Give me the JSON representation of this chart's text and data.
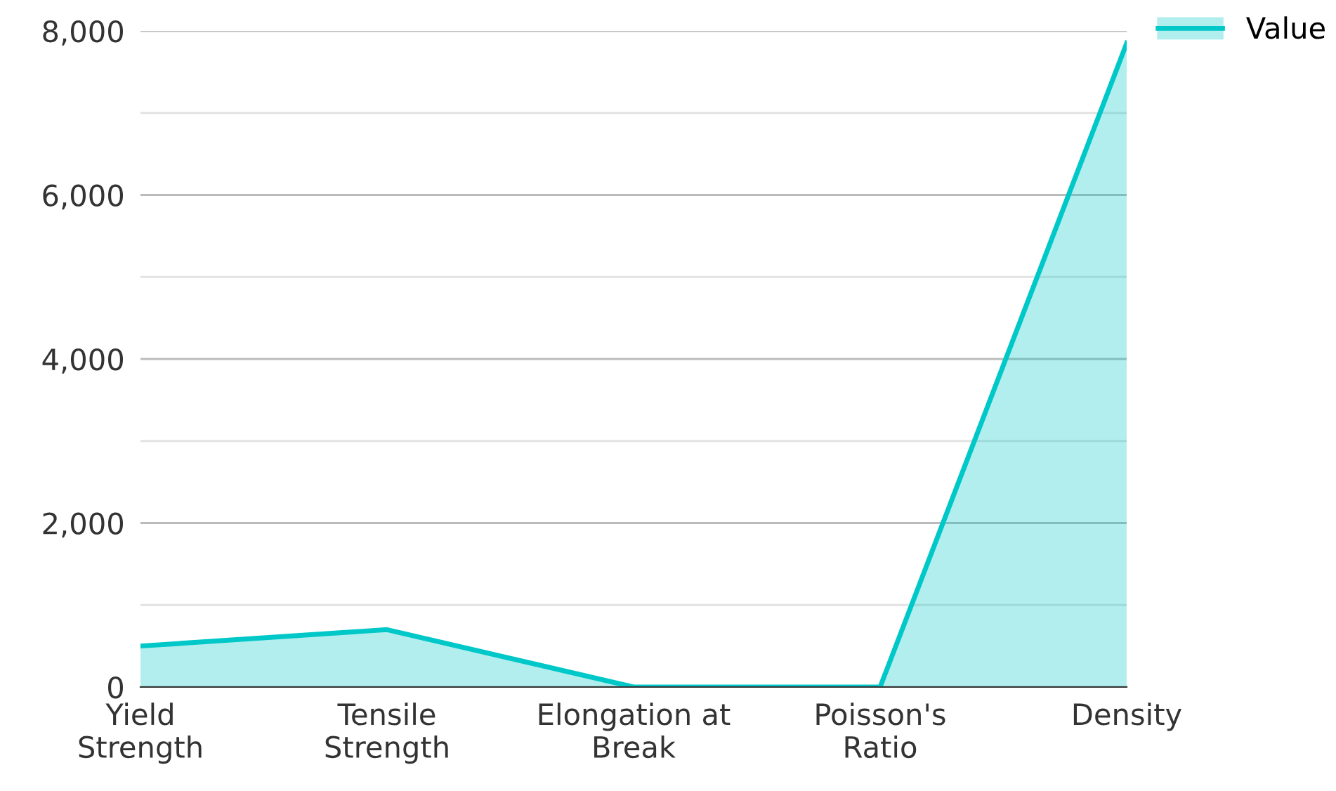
{
  "chart_data": {
    "type": "area",
    "categories": [
      "Yield Strength",
      "Tensile Strength",
      "Elongation at Break",
      "Poisson's Ratio",
      "Density"
    ],
    "series": [
      {
        "name": "Value",
        "color": "#00c8c8",
        "values": [
          500,
          700,
          0,
          0,
          7850
        ]
      }
    ],
    "ylim": [
      0,
      8000
    ],
    "yticks": [
      0,
      {
        "value": 1000,
        "label": null
      },
      {
        "value": 2000,
        "label": "2,000"
      },
      {
        "value": 3000,
        "label": null
      },
      {
        "value": 4000,
        "label": "4,000"
      },
      {
        "value": 5000,
        "label": null
      },
      {
        "value": 6000,
        "label": "6,000"
      },
      {
        "value": 7000,
        "label": null
      },
      {
        "value": 8000,
        "label": "8,000"
      }
    ],
    "grid": "y",
    "legend": "top right"
  }
}
